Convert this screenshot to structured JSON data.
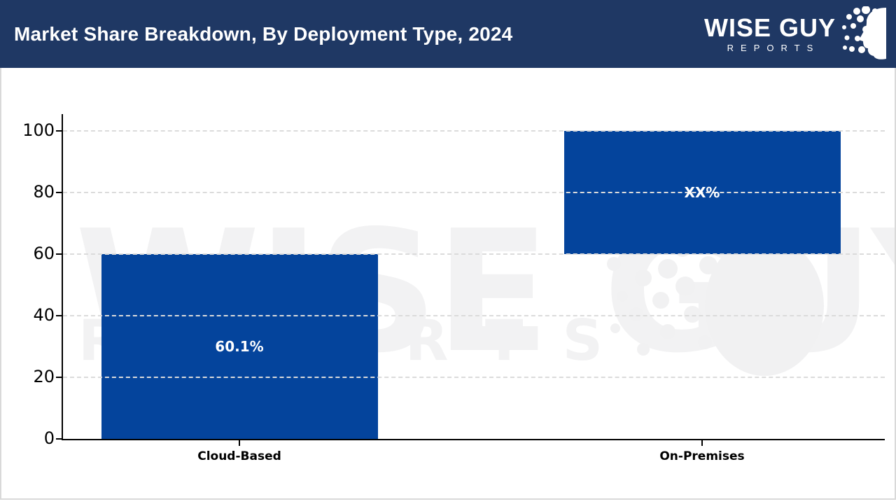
{
  "header": {
    "title": "Market Share Breakdown, By Deployment Type, 2024",
    "bg_color": "#1F3864",
    "logo": {
      "line1": "WISE GUY",
      "line2": "REPORTS"
    }
  },
  "watermark": {
    "line1": "WISE GUY",
    "line2": "REPORTS"
  },
  "chart_data": {
    "type": "bar",
    "subtype": "waterfall-range",
    "title": "Market Share Breakdown, By Deployment Type, 2024",
    "categories": [
      "Cloud-Based",
      "On-Premises"
    ],
    "bars": [
      {
        "category": "Cloud-Based",
        "start": 0,
        "end": 60.1,
        "label": "60.1%"
      },
      {
        "category": "On-Premises",
        "start": 60.1,
        "end": 100,
        "label": "XX%"
      }
    ],
    "values": [
      60.1,
      39.9
    ],
    "xlabel": "",
    "ylabel": "",
    "ylim": [
      0,
      105
    ],
    "yticks": [
      0,
      20,
      40,
      60,
      80,
      100
    ],
    "grid": "horizontal-dashed",
    "grid_color": "#DBDBDB",
    "bar_color": "#04449C",
    "axis_color": "#000000",
    "legend": "none"
  }
}
